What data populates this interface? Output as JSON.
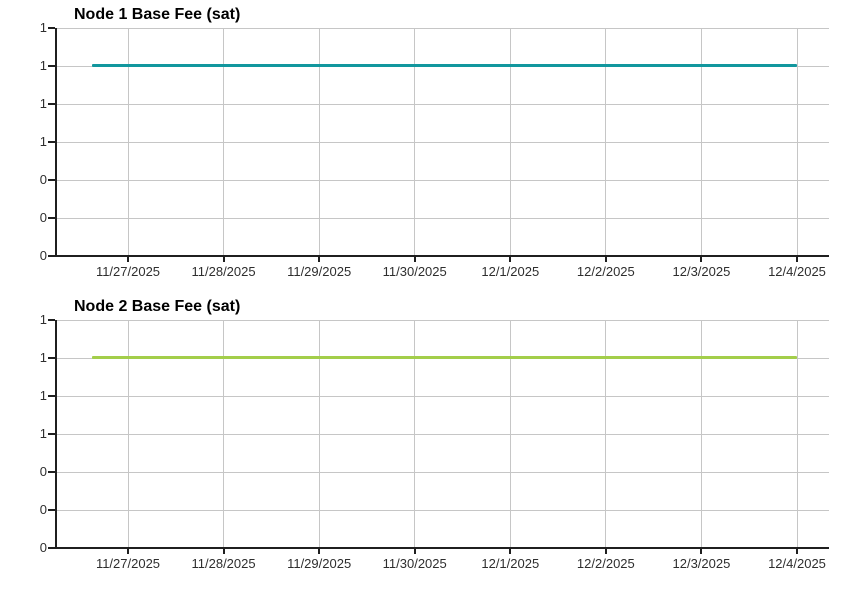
{
  "colors": {
    "background": "#ffffff",
    "gridline": "#c6c6c6",
    "axis": "#1f1f1f",
    "title_text": "#000000",
    "tick_text": "#2e2e2e",
    "node1_line": "#12979e",
    "node2_line": "#a3ce4a"
  },
  "charts": [
    {
      "title": "Node 1 Base Fee (sat)",
      "line_color": "#12979e",
      "y_tick_labels": [
        "1",
        "1",
        "1",
        "1",
        "0",
        "0",
        "0"
      ],
      "x_tick_labels": [
        "11/27/2025",
        "11/28/2025",
        "11/29/2025",
        "11/30/2025",
        "12/1/2025",
        "12/2/2025",
        "12/3/2025",
        "12/4/2025"
      ]
    },
    {
      "title": "Node 2 Base Fee (sat)",
      "line_color": "#a3ce4a",
      "y_tick_labels": [
        "1",
        "1",
        "1",
        "1",
        "0",
        "0",
        "0"
      ],
      "x_tick_labels": [
        "11/27/2025",
        "11/28/2025",
        "11/29/2025",
        "11/30/2025",
        "12/1/2025",
        "12/2/2025",
        "12/3/2025",
        "12/4/2025"
      ]
    }
  ],
  "chart_data": [
    {
      "type": "line",
      "title": "Node 1 Base Fee (sat)",
      "x": [
        "11/27/2025",
        "11/28/2025",
        "11/29/2025",
        "11/30/2025",
        "12/1/2025",
        "12/2/2025",
        "12/3/2025",
        "12/4/2025"
      ],
      "series": [
        {
          "name": "Node 1 Base Fee (sat)",
          "color": "#12979e",
          "values": [
            1,
            1,
            1,
            1,
            1,
            1,
            1,
            1
          ]
        }
      ],
      "xlabel": "",
      "ylabel": "",
      "ylim": [
        0,
        1.2
      ],
      "y_tick_values": [
        0,
        0.2,
        0.4,
        0.6,
        0.8,
        1.0,
        1.2
      ],
      "y_tick_labels_as_displayed_top_to_bottom": [
        "1",
        "1",
        "1",
        "1",
        "0",
        "0",
        "0"
      ],
      "grid": true,
      "legend_position": "none"
    },
    {
      "type": "line",
      "title": "Node 2 Base Fee (sat)",
      "x": [
        "11/27/2025",
        "11/28/2025",
        "11/29/2025",
        "11/30/2025",
        "12/1/2025",
        "12/2/2025",
        "12/3/2025",
        "12/4/2025"
      ],
      "series": [
        {
          "name": "Node 2 Base Fee (sat)",
          "color": "#a3ce4a",
          "values": [
            1,
            1,
            1,
            1,
            1,
            1,
            1,
            1
          ]
        }
      ],
      "xlabel": "",
      "ylabel": "",
      "ylim": [
        0,
        1.2
      ],
      "y_tick_values": [
        0,
        0.2,
        0.4,
        0.6,
        0.8,
        1.0,
        1.2
      ],
      "y_tick_labels_as_displayed_top_to_bottom": [
        "1",
        "1",
        "1",
        "1",
        "0",
        "0",
        "0"
      ],
      "grid": true,
      "legend_position": "none"
    }
  ]
}
